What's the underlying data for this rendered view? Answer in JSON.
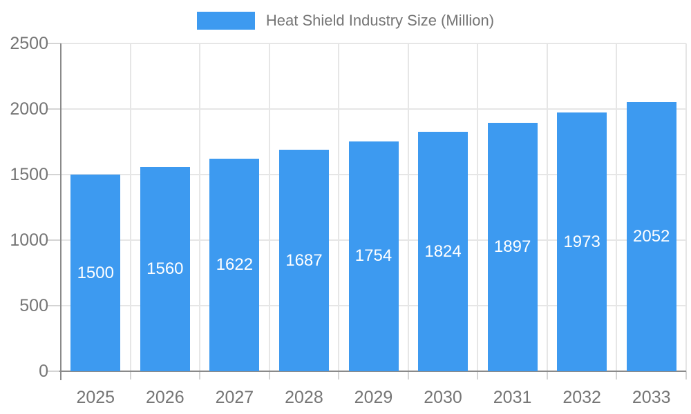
{
  "chart_data": {
    "type": "bar",
    "title": "",
    "legend": "Heat Shield Industry Size (Million)",
    "categories": [
      "2025",
      "2026",
      "2027",
      "2028",
      "2029",
      "2030",
      "2031",
      "2032",
      "2033"
    ],
    "series": [
      {
        "name": "Heat Shield Industry Size (Million)",
        "values": [
          1500,
          1560,
          1622,
          1687,
          1754,
          1824,
          1897,
          1973,
          2052
        ]
      }
    ],
    "values": [
      1500,
      1560,
      1622,
      1687,
      1754,
      1824,
      1897,
      1973,
      2052
    ],
    "bar_labels": [
      "1500",
      "1560",
      "1622",
      "1687",
      "1754",
      "1824",
      "1897",
      "1973",
      "2052"
    ],
    "xlabel": "",
    "ylabel": "",
    "ylim": [
      0,
      2500
    ],
    "yticks": [
      0,
      500,
      1000,
      1500,
      2000,
      2500
    ],
    "ytick_labels": [
      "0",
      "500",
      "1000",
      "1500",
      "2000",
      "2500"
    ],
    "grid": "on",
    "legend_position": "top",
    "colors": {
      "bar": "#3D9AF0",
      "bar_label_text": "#ffffff",
      "axis_line": "#8a8a8a",
      "gridline": "#e6e6e6",
      "tick": "#d4d4d4",
      "text": "#757575"
    }
  }
}
